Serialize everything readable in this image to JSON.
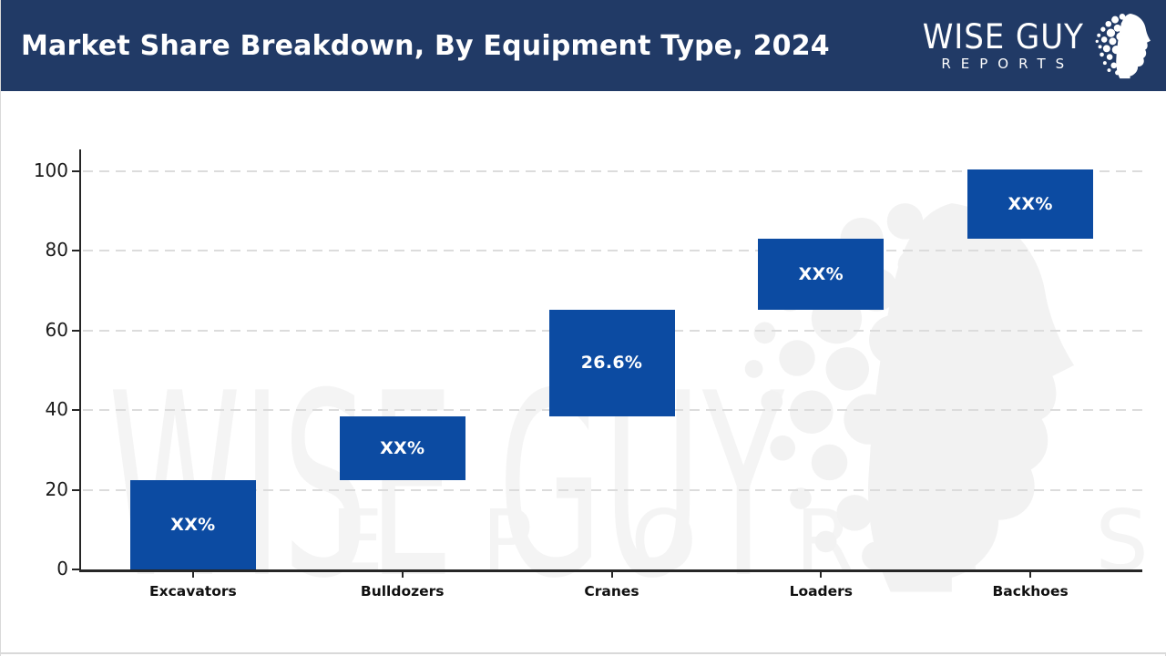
{
  "header": {
    "title": "Market Share Breakdown, By Equipment Type, 2024",
    "logo": {
      "line1": "WISE GUY",
      "line2": "REPORTS"
    }
  },
  "watermark": {
    "line1": "WISE GUY",
    "line2": "REPORTS"
  },
  "colors": {
    "header_bg": "#213A66",
    "bar": "#0C4BA2",
    "bar_label_text": "#FFFFFF",
    "grid": "#DCDCDC",
    "axis": "#262626",
    "tick_text": "#1A1A1A",
    "watermark": "#F2F2F2",
    "border": "#D9D9D9"
  },
  "chart_data": {
    "type": "bar",
    "subtype": "waterfall",
    "title": "Market Share Breakdown, By Equipment Type, 2024",
    "categories": [
      "Excavators",
      "Bulldozers",
      "Cranes",
      "Loaders",
      "Backhoes"
    ],
    "segments": [
      {
        "category": "Excavators",
        "start": 0,
        "end": 22.5,
        "label": "XX%"
      },
      {
        "category": "Bulldozers",
        "start": 22.5,
        "end": 38.5,
        "label": "XX%"
      },
      {
        "category": "Cranes",
        "start": 38.5,
        "end": 65.1,
        "label": "26.6%"
      },
      {
        "category": "Loaders",
        "start": 65.1,
        "end": 83.0,
        "label": "XX%"
      },
      {
        "category": "Backhoes",
        "start": 83.0,
        "end": 100.4,
        "label": "XX%"
      }
    ],
    "yticks": [
      0,
      20,
      40,
      60,
      80,
      100
    ],
    "ylim": [
      0,
      105
    ],
    "xlabel": "",
    "ylabel": "",
    "grid": "horizontal-dashed",
    "legend": "none",
    "bar_color": "#0C4BA2",
    "value_label_color": "#FFFFFF"
  }
}
